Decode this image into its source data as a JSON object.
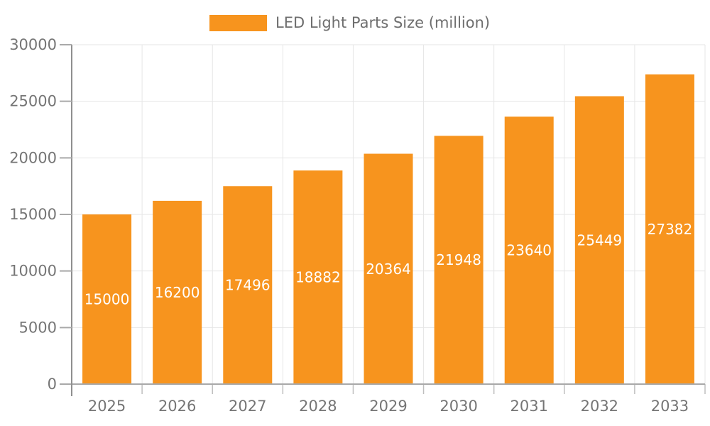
{
  "legend": {
    "label": "LED Light Parts Size (million)",
    "swatch_color": "#F7941E"
  },
  "chart_data": {
    "type": "bar",
    "title": "LED Light Parts Size (million)",
    "series_name": "LED Light Parts Size (million)",
    "categories": [
      "2025",
      "2026",
      "2027",
      "2028",
      "2029",
      "2030",
      "2031",
      "2032",
      "2033"
    ],
    "values": [
      15000,
      16200,
      17496,
      18882,
      20364,
      21948,
      23640,
      25449,
      27382
    ],
    "value_labels": [
      "15000",
      "16200",
      "17496",
      "18882",
      "20364",
      "21948",
      "23640",
      "25449",
      "27382"
    ],
    "xlabel": "",
    "ylabel": "",
    "ylim": [
      0,
      30000
    ],
    "y_ticks": [
      0,
      5000,
      10000,
      15000,
      20000,
      25000,
      30000
    ],
    "grid": true,
    "legend_position": "top-center",
    "value_label_position": "inside-center",
    "colors": {
      "bar": "#F7941E",
      "value_label": "#FFFFFF",
      "axis_text": "#757575",
      "grid_line": "#E6E6E6",
      "x_axis_line": "#A9A9A9",
      "y_axis_line": "#8F8F8F",
      "tick_mark": "#BFBFBF",
      "background": "#FFFFFF",
      "legend_text": "#6E6E6E"
    }
  }
}
